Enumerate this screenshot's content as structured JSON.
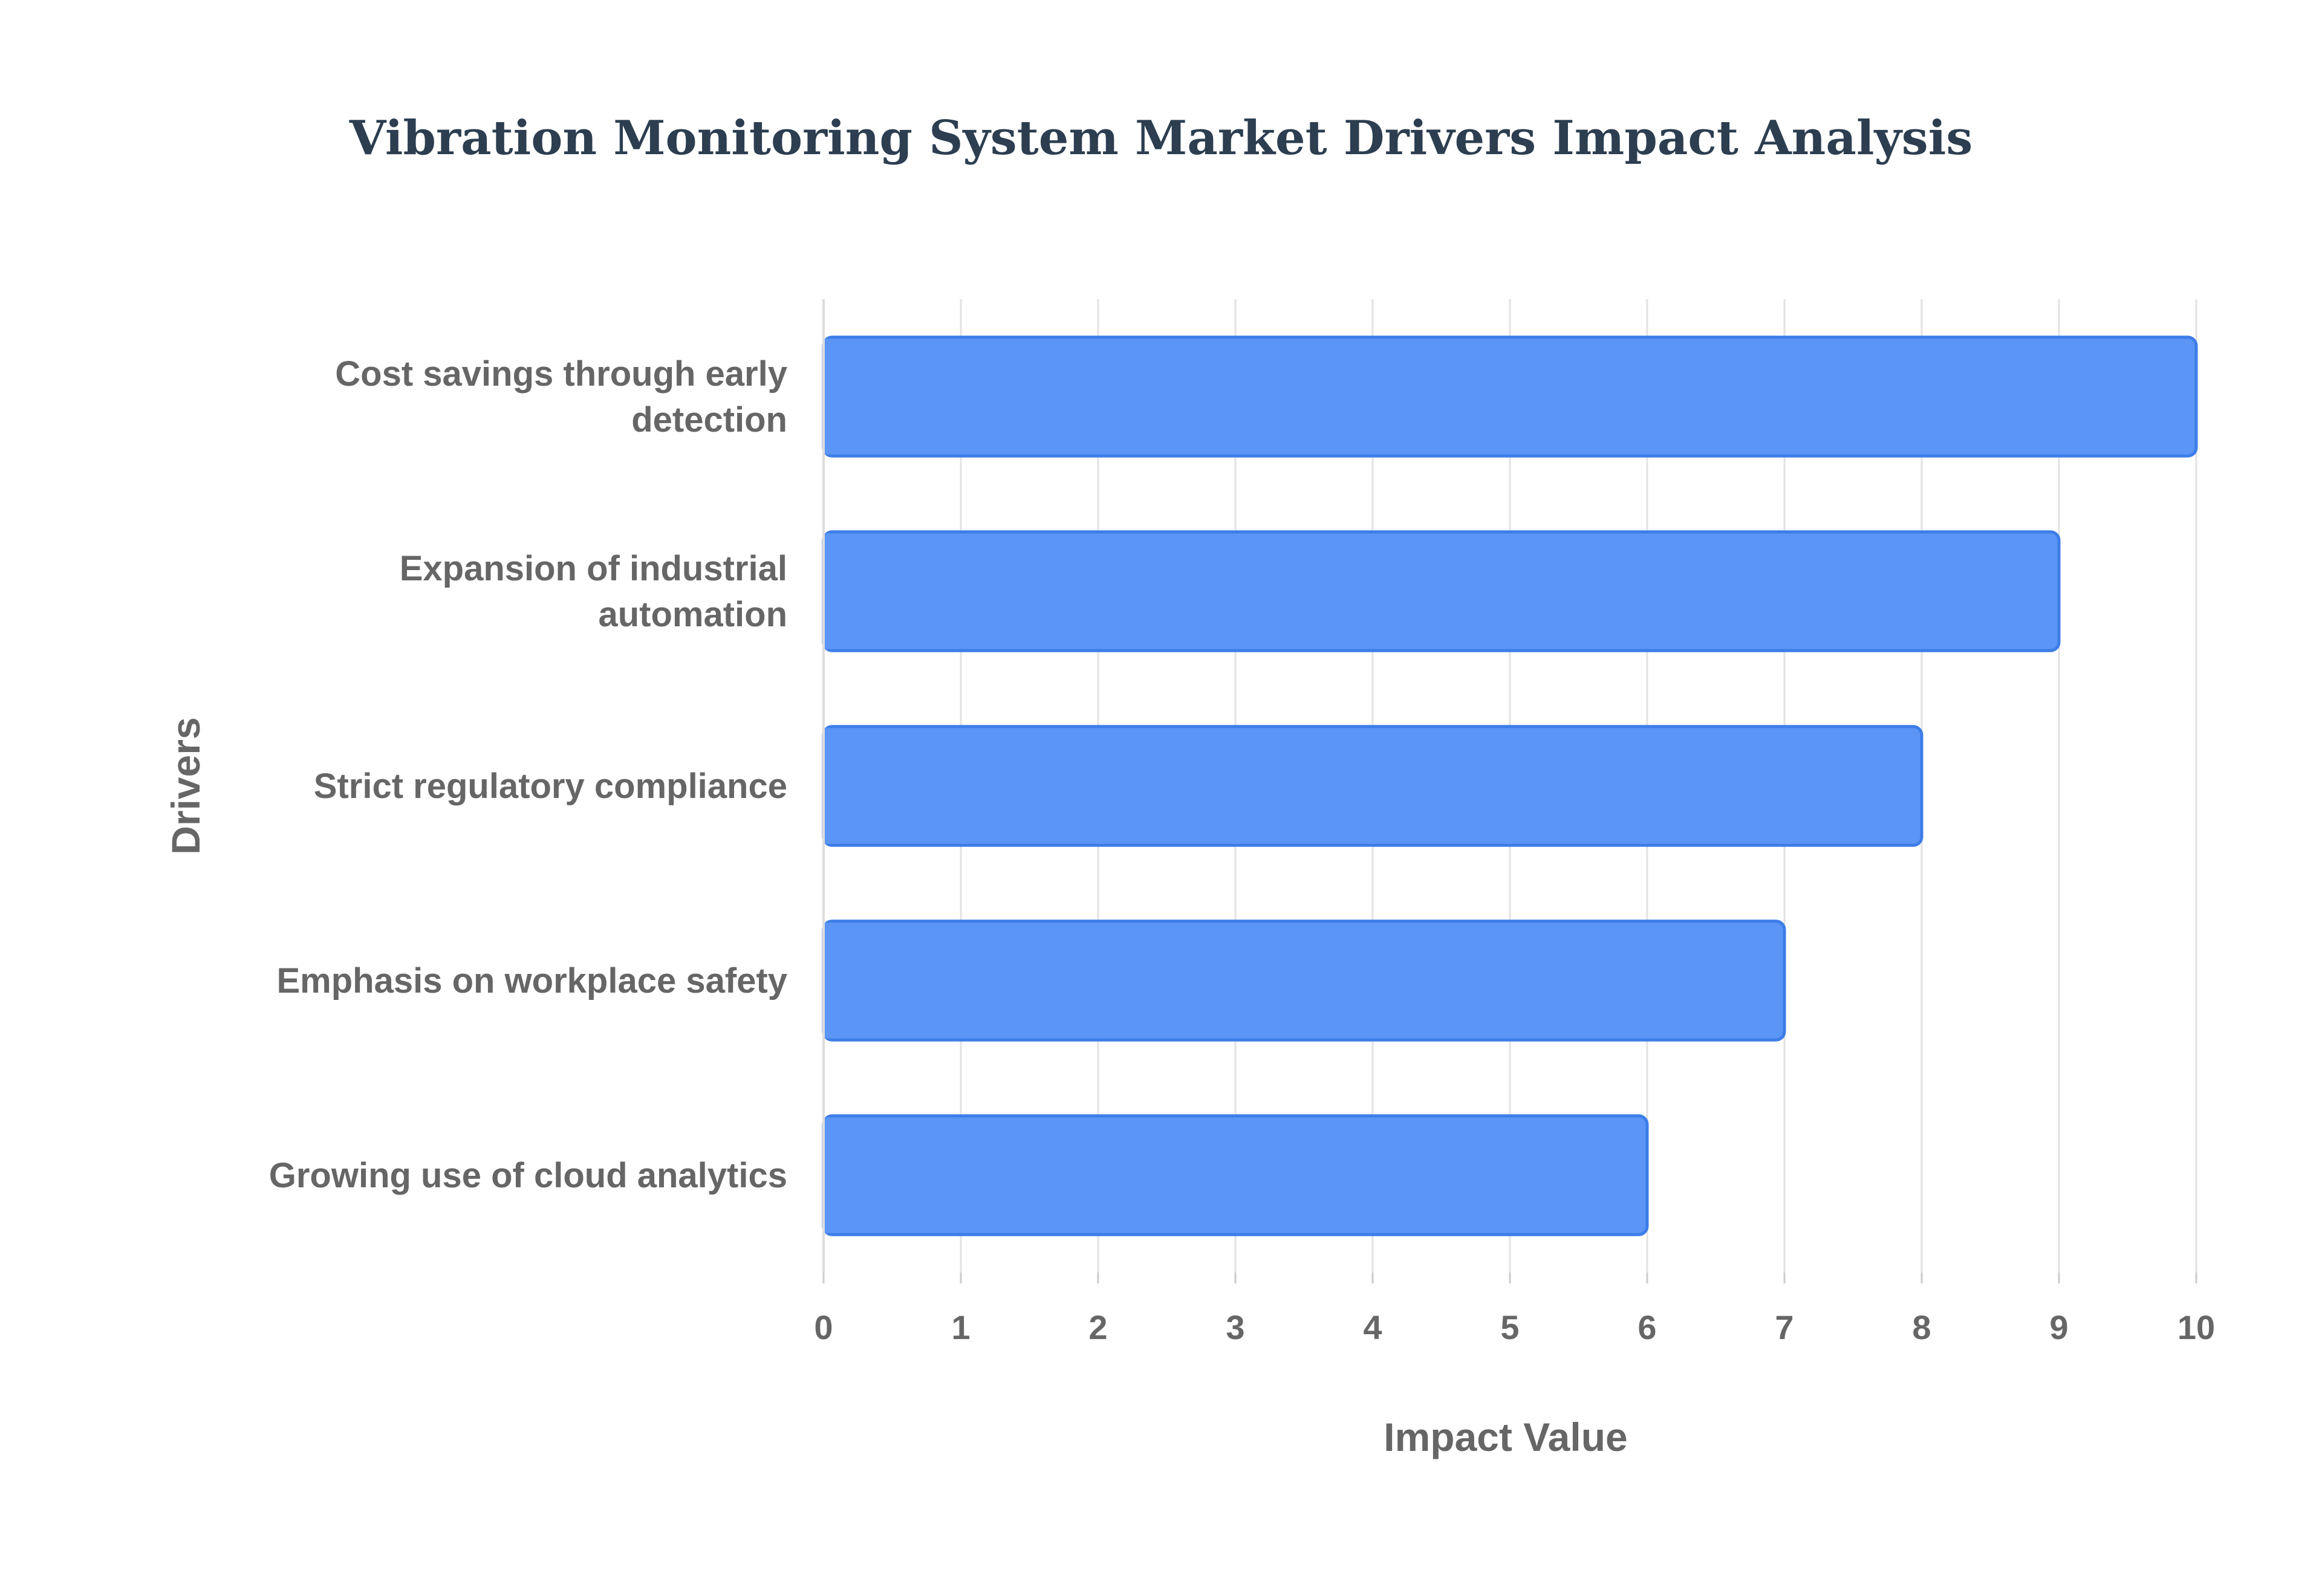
{
  "chart_data": {
    "type": "bar",
    "orientation": "horizontal",
    "title": "Vibration Monitoring System Market Drivers Impact Analysis",
    "xlabel": "Impact Value",
    "ylabel": "Drivers",
    "categories": [
      "Cost savings through early detection",
      "Expansion of industrial automation",
      "Strict regulatory compliance",
      "Emphasis on workplace safety",
      "Growing use of cloud analytics"
    ],
    "values": [
      10,
      9,
      8,
      7,
      6
    ],
    "xlim": [
      0,
      10
    ],
    "xticks": [
      "0",
      "1",
      "2",
      "3",
      "4",
      "5",
      "6",
      "7",
      "8",
      "9",
      "10"
    ],
    "grid": true,
    "legend": "none",
    "colors": {
      "bar_fill": "#5b95f5",
      "bar_stroke": "#3d7de8",
      "grid": "#e2e2e2",
      "text": "#666666",
      "title": "#2c3e50"
    }
  }
}
